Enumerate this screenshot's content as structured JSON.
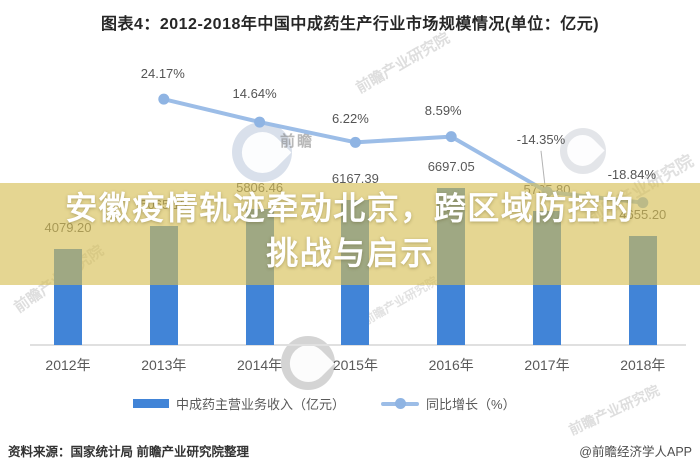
{
  "title": "图表4：2012-2018年中国中成药生产行业市场规模情况(单位：亿元)",
  "overlay": {
    "headline_line1": "安徽疫情轨迹牵动北京，跨区域防控的",
    "headline_line2": "挑战与启示"
  },
  "chart_data": {
    "type": "bar",
    "subtype": "bar-line-combo",
    "categories": [
      "2012年",
      "2013年",
      "2014年",
      "2015年",
      "2016年",
      "2017年",
      "2018年"
    ],
    "series": [
      {
        "name": "中成药主营业务收入（亿元）",
        "type": "bar",
        "color": "#4184d7",
        "values": [
          4079.2,
          5065.13,
          5806.46,
          6167.39,
          6697.05,
          5735.8,
          4655.2
        ],
        "value_labels": [
          "4079.20",
          "5065.13",
          "5806.46",
          "6167.39",
          "6697.05",
          "5735.80",
          "4655.20"
        ]
      },
      {
        "name": "同比增长（%）",
        "type": "line",
        "color": "#9cbde7",
        "values": [
          null,
          24.17,
          14.64,
          6.22,
          8.59,
          -14.35,
          -18.84
        ],
        "value_labels": [
          null,
          "24.17%",
          "14.64%",
          "6.22%",
          "8.59%",
          "-14.35%",
          "-18.84%"
        ]
      }
    ],
    "grid": false,
    "value_axis_visible": false,
    "legend_position": "bottom"
  },
  "legend": [
    {
      "label": "中成药主营业务收入（亿元）",
      "color": "#4184d7"
    },
    {
      "label": "同比增长（%）",
      "color": "#9cbde7"
    }
  ],
  "footer": {
    "source": "资料来源：国家统计局 前瞻产业研究院整理",
    "credit": "@前瞻经济学人APP"
  },
  "watermarks": {
    "brand_logo_text": "前瞻",
    "diagonal_text": "前瞻产业研究院"
  },
  "colors": {
    "bar": "#4184d7",
    "line": "#9cbde7",
    "banner": "rgba(214,190,82,0.63)",
    "headline": "#ffffff",
    "text_gray": "#595959"
  }
}
